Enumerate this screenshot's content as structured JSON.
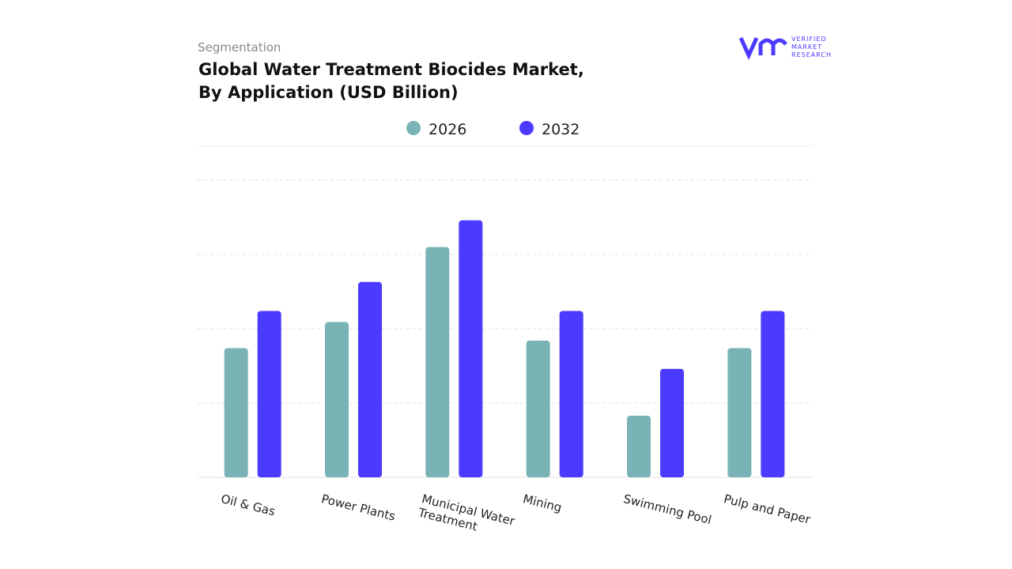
{
  "header": {
    "eyebrow": "Segmentation",
    "title_line1": "Global Water Treatment Biocides Market,",
    "title_line2": "By Application (USD Billion)",
    "brand": [
      "VERIFIED",
      "MARKET",
      "RESEARCH"
    ]
  },
  "chart_data": {
    "type": "bar",
    "categories": [
      "Oil & Gas",
      "Power Plants",
      "Municipal Water Treatment",
      "Mining",
      "Swimming Pool",
      "Pulp and Paper"
    ],
    "series": [
      {
        "name": "2026",
        "color": "#7ab3b5",
        "values": [
          1.74,
          2.09,
          3.1,
          1.84,
          0.83,
          1.74
        ]
      },
      {
        "name": "2032",
        "color": "#4b3aff",
        "values": [
          2.24,
          2.63,
          3.46,
          2.24,
          1.46,
          2.24
        ]
      }
    ],
    "ylim": [
      0,
      4.5
    ],
    "yticks": [
      0,
      1,
      2,
      3,
      4
    ],
    "grid": true
  }
}
